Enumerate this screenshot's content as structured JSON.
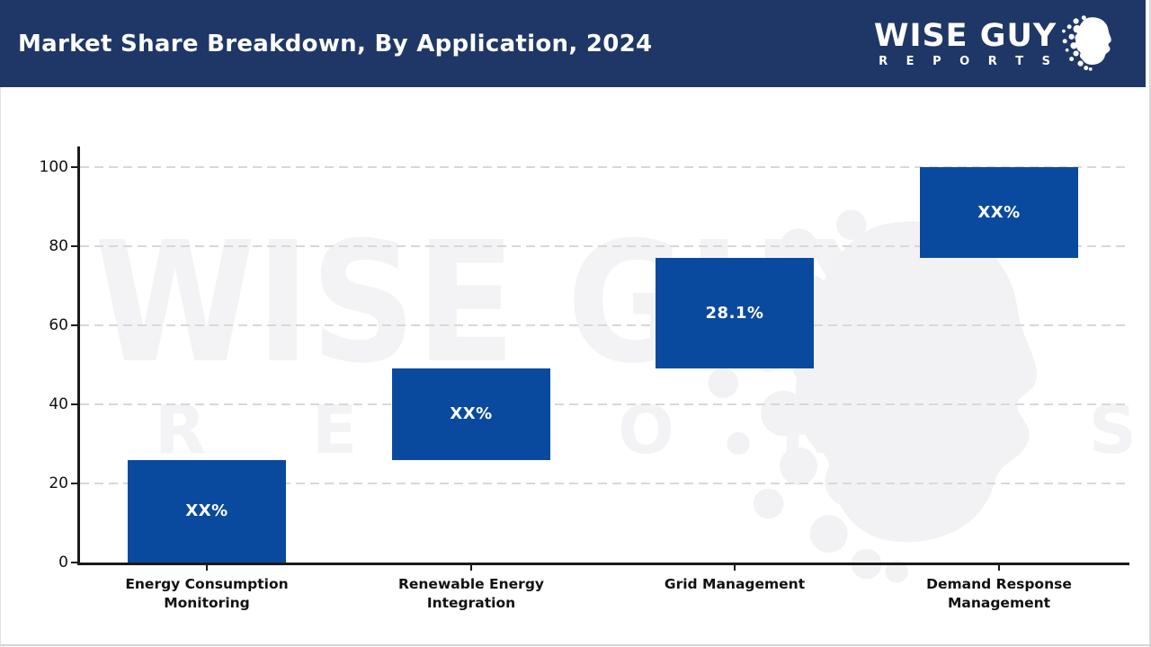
{
  "header": {
    "title": "Market Share Breakdown, By Application, 2024",
    "logo": {
      "brand": "WISE GUY",
      "sub": "REPORTS"
    }
  },
  "watermark": {
    "brand": "WISE GUY",
    "sub": "REPORTS"
  },
  "colors": {
    "header_bg": "#1f3766",
    "bar": "#0a4a9e",
    "grid": "#d8d8d8",
    "axis": "#1a1a1a",
    "watermark": "#f3f3f5",
    "bar_label_text": "#ffffff"
  },
  "chart_data": {
    "type": "bar",
    "variant": "floating-waterfall",
    "title": "Market Share Breakdown, By Application, 2024",
    "categories": [
      "Energy Consumption Monitoring",
      "Renewable Energy Integration",
      "Grid Management",
      "Demand Response Management"
    ],
    "segments": [
      {
        "category": "Energy Consumption Monitoring",
        "category_wrap": "Energy Consumption\nMonitoring",
        "start": 0,
        "end": 26,
        "value": 26,
        "label": "XX%"
      },
      {
        "category": "Renewable Energy Integration",
        "category_wrap": "Renewable Energy\nIntegration",
        "start": 26,
        "end": 49,
        "value": 23,
        "label": "XX%"
      },
      {
        "category": "Grid Management",
        "category_wrap": "Grid Management",
        "start": 49,
        "end": 77.1,
        "value": 28.1,
        "label": "28.1%"
      },
      {
        "category": "Demand Response Management",
        "category_wrap": "Demand Response\nManagement",
        "start": 77.1,
        "end": 100,
        "value": 22.9,
        "label": "XX%"
      }
    ],
    "xlabel": "",
    "ylabel": "",
    "yticks": [
      0,
      20,
      40,
      60,
      80,
      100
    ],
    "ylim": [
      0,
      105
    ],
    "grid": "horizontal-dashed",
    "legend": "none",
    "bar_color": "#0a4a9e"
  }
}
